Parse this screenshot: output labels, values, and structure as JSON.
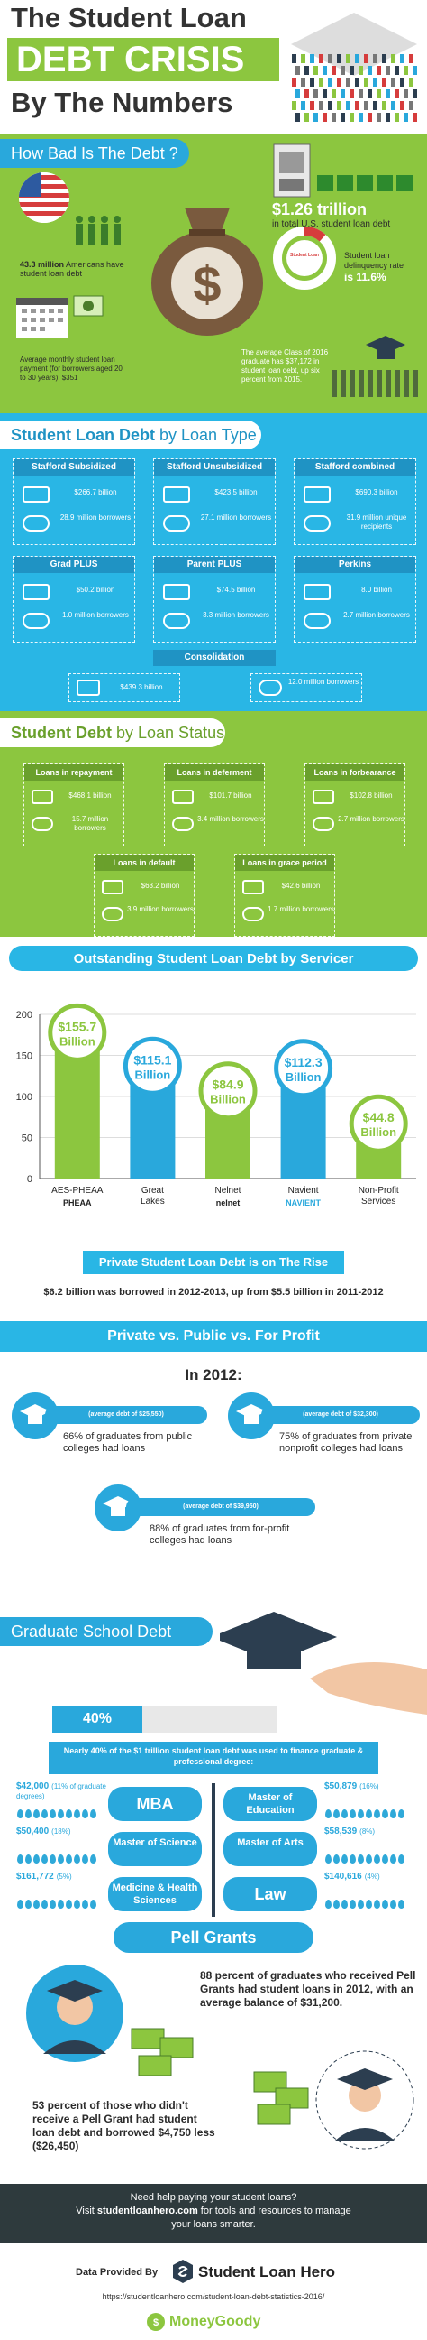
{
  "header": {
    "title_line1": "The Student Loan",
    "title_line2": "DEBT CRISIS",
    "title_line3": "By The Numbers"
  },
  "how_bad": {
    "tab": "How Bad Is The Debt ?",
    "total": "$1.26 trillion",
    "total_sub": "in total U.S. student loan debt",
    "americans_value": "43.3 million",
    "americans_text": "Americans have student loan debt",
    "delinquency_label": "Student loan delinquency rate",
    "delinquency_value": "is 11.6%",
    "sign_text": "Student Loan",
    "avg_payment": "Average monthly student loan payment (for borrowers aged 20 to 30 years): $351",
    "class_2016": "The average Class of 2016 graduate has $37,172 in student loan debt, up six percent from 2015."
  },
  "loan_type": {
    "tab_bold": "Student Loan Debt",
    "tab_rest": " by Loan Type",
    "items": [
      {
        "name": "Stafford Subsidized",
        "amount": "$266.7 billion",
        "borrowers": "28.9 million borrowers"
      },
      {
        "name": "Stafford Unsubsidized",
        "amount": "$423.5 billion",
        "borrowers": "27.1 million borrowers"
      },
      {
        "name": "Stafford combined",
        "amount": "$690.3 billion",
        "borrowers": "31.9 million unique recipients"
      },
      {
        "name": "Grad PLUS",
        "amount": "$50.2 billion",
        "borrowers": "1.0 million borrowers"
      },
      {
        "name": "Parent PLUS",
        "amount": "$74.5 billion",
        "borrowers": "3.3 million borrowers"
      },
      {
        "name": "Perkins",
        "amount": "8.0 billion",
        "borrowers": "2.7 million borrowers"
      }
    ],
    "consolidation": {
      "name": "Consolidation",
      "amount": "$439.3 billion",
      "borrowers": "12.0 million borrowers"
    }
  },
  "loan_status": {
    "tab_bold": "Student Debt",
    "tab_rest": " by Loan Status",
    "items": [
      {
        "name": "Loans in repayment",
        "amount": "$468.1 billion",
        "borrowers": "15.7 million borrowers"
      },
      {
        "name": "Loans in deferment",
        "amount": "$101.7 billion",
        "borrowers": "3.4 million borrowers"
      },
      {
        "name": "Loans in forbearance",
        "amount": "$102.8 billion",
        "borrowers": "2.7 million borrowers"
      },
      {
        "name": "Loans in default",
        "amount": "$63.2 billion",
        "borrowers": "3.9 million borrowers"
      },
      {
        "name": "Loans in grace period",
        "amount": "$42.6 billion",
        "borrowers": "1.7 million borrowers"
      }
    ]
  },
  "servicer": {
    "title": "Outstanding Student Loan Debt by Servicer"
  },
  "chart_data": {
    "type": "bar",
    "categories": [
      "AES-PHEAA",
      "Great Lakes",
      "Nelnet",
      "Navient",
      "Non-Profit Services"
    ],
    "values": [
      155.7,
      115.1,
      84.9,
      112.3,
      44.8
    ],
    "labels": [
      "$155.7 Billion",
      "$115.1 Billion",
      "$84.9 Billion",
      "$112.3 Billion",
      "$44.8 Billion"
    ],
    "logos": [
      "PHEAA",
      "",
      "nelnet",
      "NAVIENT",
      ""
    ],
    "yticks": [
      0,
      50,
      100,
      150,
      200
    ],
    "ylim": [
      0,
      200
    ],
    "colors": [
      "#8cc63f",
      "#29a8dc",
      "#8cc63f",
      "#29a8dc",
      "#8cc63f"
    ],
    "ring_colors": [
      "#8cc63f",
      "#29a8dc",
      "#8cc63f",
      "#29a8dc",
      "#8cc63f"
    ]
  },
  "private_rise": {
    "banner": "Private Student Loan Debt is on The Rise",
    "text": "$6.2 billion was borrowed in 2012-2013, up from $5.5 billion in 2011-2012"
  },
  "private_public": {
    "banner": "Private vs. Public vs. For Profit",
    "year": "In 2012:",
    "public": {
      "pill": "(average debt of $25,550)",
      "text": "66% of graduates from public colleges had loans"
    },
    "nonprofit": {
      "pill": "(average debt of $32,300)",
      "text": "75% of graduates from private nonprofit colleges had loans"
    },
    "forprofit": {
      "pill": "(average debt of $39,950)",
      "text": "88% of graduates from for-profit colleges had loans"
    }
  },
  "grad_school": {
    "tab": "Graduate School Debt",
    "percent": "40%",
    "note": "Nearly 40% of the $1 trillion student loan debt was used to finance graduate & professional degree:",
    "degrees": [
      {
        "name": "MBA",
        "value": "$42,000",
        "share": "(11% of graduate degrees)"
      },
      {
        "name": "Master of Education",
        "value": "$50,879",
        "share": "(16%)"
      },
      {
        "name": "Master of Science",
        "value": "$50,400",
        "share": "(18%)"
      },
      {
        "name": "Master of Arts",
        "value": "$58,539",
        "share": "(8%)"
      },
      {
        "name": "Medicine & Health Sciences",
        "value": "$161,772",
        "share": "(5%)"
      },
      {
        "name": "Law",
        "value": "$140,616",
        "share": "(4%)"
      }
    ]
  },
  "pell": {
    "banner": "Pell Grants",
    "stat1": "88 percent of graduates who received Pell Grants had student loans in 2012, with an average balance of $31,200.",
    "stat2": "53 percent of those who didn't receive a Pell Grant had student loan debt and borrowed $4,750 less ($26,450)"
  },
  "footer": {
    "help_line1": "Need help paying your student loans?",
    "help_line2_prefix": "Visit ",
    "help_link": "studentloanhero.com",
    "help_line2_suffix": " for tools and resources to manage",
    "help_line3": "your loans smarter.",
    "provided_by": "Data Provided By",
    "brand": "Student Loan Hero",
    "url": "https://studentloanhero.com/student-loan-debt-statistics-2016/",
    "moneygoody": "MoneyGoody"
  },
  "colors": {
    "green": "#8cc63f",
    "blue": "#29b6e5",
    "dark_blue": "#1f93c4",
    "navy": "#2c3e50",
    "dark_footer": "#2e3a3d"
  }
}
